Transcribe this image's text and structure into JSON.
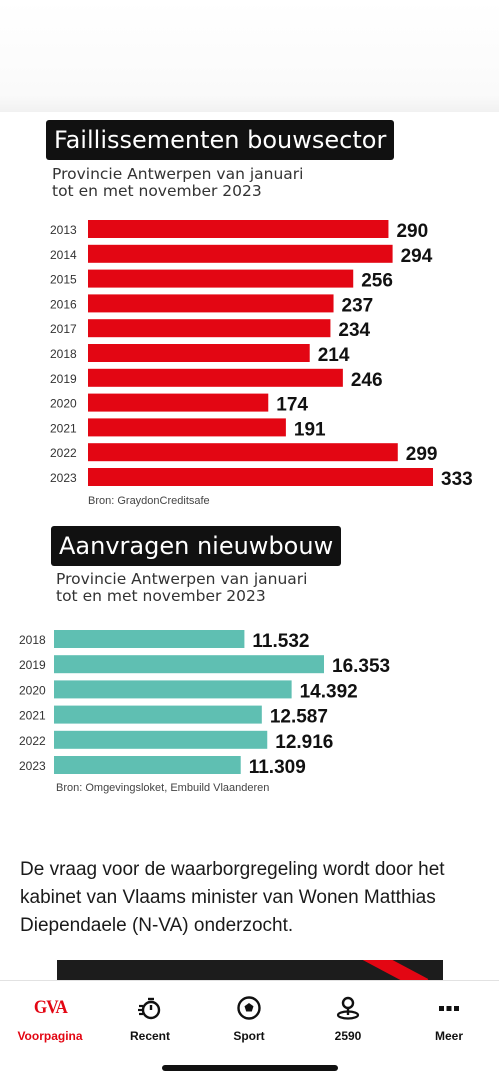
{
  "chart_data": [
    {
      "type": "bar",
      "orientation": "horizontal",
      "title": "Faillissementen bouwsector",
      "subtitle": "Provincie Antwerpen van januari\ntot en met november 2023",
      "categories": [
        "2013",
        "2014",
        "2015",
        "2016",
        "2017",
        "2018",
        "2019",
        "2020",
        "2021",
        "2022",
        "2023"
      ],
      "values": [
        290,
        294,
        256,
        237,
        234,
        214,
        246,
        174,
        191,
        299,
        333
      ],
      "value_labels": [
        "290",
        "294",
        "256",
        "237",
        "234",
        "214",
        "246",
        "174",
        "191",
        "299",
        "333"
      ],
      "source": "Bron: GraydonCreditsafe",
      "bar_color": "#e30613",
      "xlim": [
        0,
        333
      ]
    },
    {
      "type": "bar",
      "orientation": "horizontal",
      "title": "Aanvragen nieuwbouw",
      "subtitle": "Provincie Antwerpen van januari\ntot en met november 2023",
      "categories": [
        "2018",
        "2019",
        "2020",
        "2021",
        "2022",
        "2023"
      ],
      "values": [
        11532,
        16353,
        14392,
        12587,
        12916,
        11309
      ],
      "value_labels": [
        "11.532",
        "16.353",
        "14.392",
        "12.587",
        "12.916",
        "11.309"
      ],
      "source": "Bron: Omgevingsloket, Embuild Vlaanderen",
      "bar_color": "#5fbfb2",
      "xlim": [
        0,
        16353
      ]
    }
  ],
  "article": {
    "text": "De vraag voor de waarborgregeling wordt door het kabinet van Vlaams minister van Wonen Matthias Diependaele (N-VA) onderzocht."
  },
  "tabbar": {
    "items": [
      {
        "label": "Voorpagina",
        "icon": "gva-logo-icon",
        "logo_text": "GVA",
        "active": true
      },
      {
        "label": "Recent",
        "icon": "stopwatch-icon"
      },
      {
        "label": "Sport",
        "icon": "soccer-ball-icon"
      },
      {
        "label": "2590",
        "icon": "location-pin-icon"
      },
      {
        "label": "Meer",
        "icon": "more-dots-icon"
      }
    ],
    "active_color": "#e30613"
  }
}
